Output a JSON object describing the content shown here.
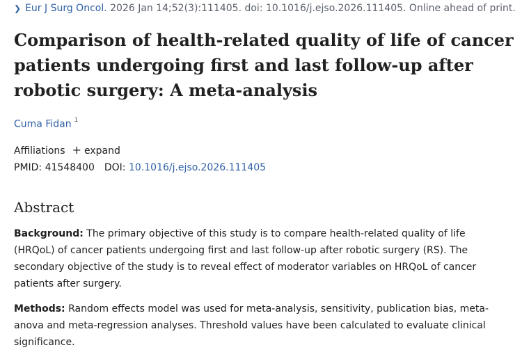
{
  "citation": {
    "journal": "Eur J Surg Oncol.",
    "details": "2026 Jan 14;52(3):111405. doi: 10.1016/j.ejso.2026.111405. Online ahead of print."
  },
  "title": "Comparison of health-related quality of life of cancer patients undergoing first and last follow-up after robotic surgery: A meta-analysis",
  "author": {
    "name": "Cuma Fidan",
    "affiliation_number": "1"
  },
  "affiliations": {
    "label": "Affiliations",
    "expand_label": "expand"
  },
  "ids": {
    "pmid_label": "PMID:",
    "pmid": "41548400",
    "doi_label": "DOI:",
    "doi": "10.1016/j.ejso.2026.111405"
  },
  "abstract": {
    "heading": "Abstract",
    "background_label": "Background:",
    "background_text": " The primary objective of this study is to compare health-related quality of life (HRQoL) of cancer patients undergoing first and last follow-up after robotic surgery (RS). The secondary objective of the study is to reveal effect of moderator variables on HRQoL of cancer patients after surgery.",
    "methods_label": "Methods:",
    "methods_text": " Random effects model was used for meta-analysis, sensitivity, publication bias, meta-anova and meta-regression analyses. Threshold values have been calculated to evaluate clinical significance."
  }
}
